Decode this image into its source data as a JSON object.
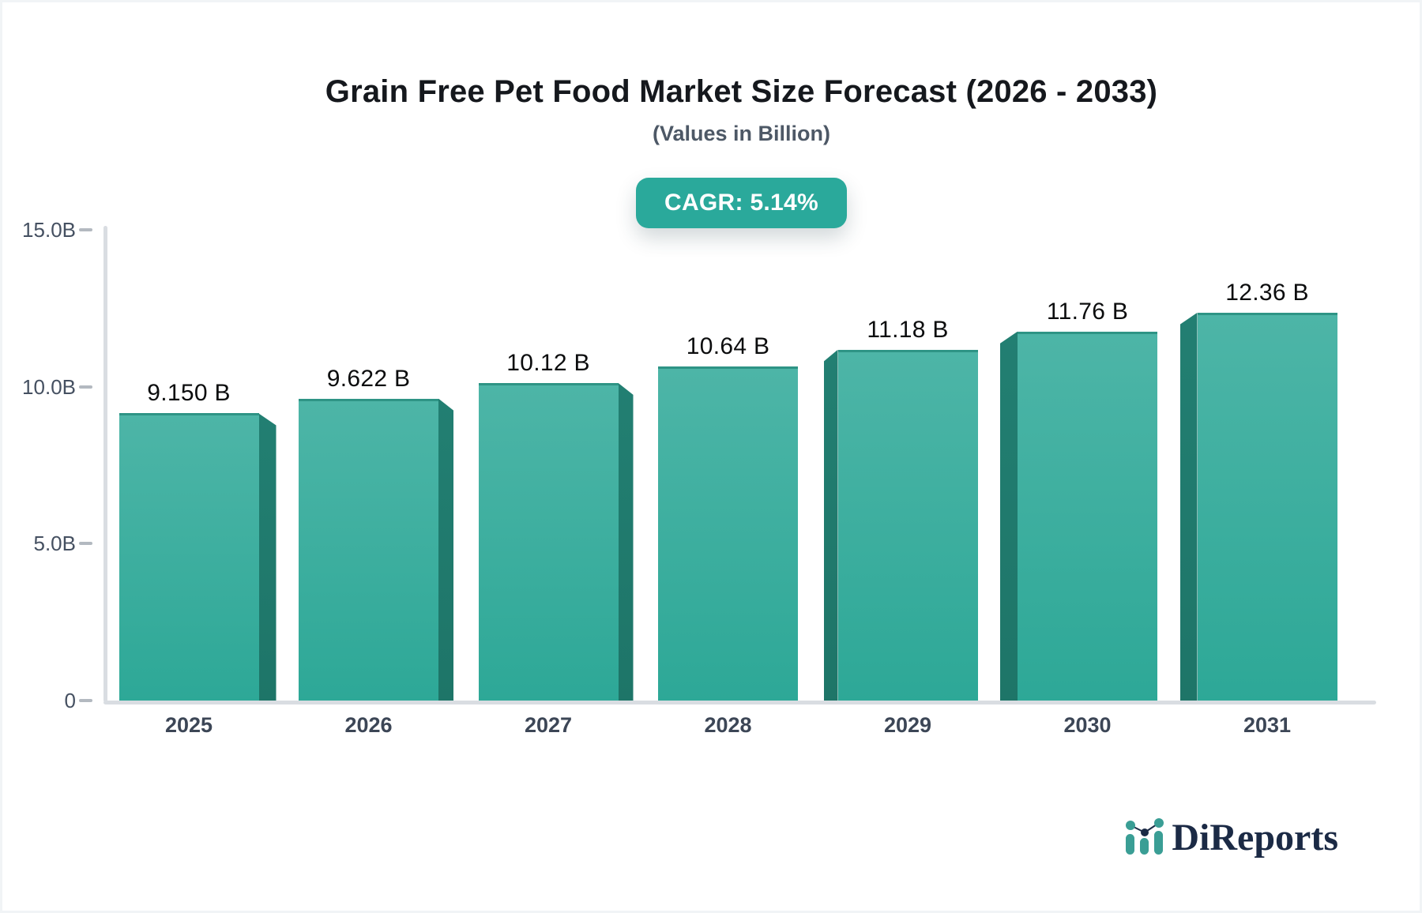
{
  "header": {
    "title": "Grain Free Pet Food Market Size Forecast (2026 - 2033)",
    "subtitle": "(Values in Billion)",
    "cagr_badge": "CAGR: 5.14%"
  },
  "chart_data": {
    "type": "bar",
    "style": "3d-perspective-bars",
    "title": "Grain Free Pet Food Market Size Forecast (2026 - 2033)",
    "subtitle": "(Values in Billion)",
    "cagr_pct": 5.14,
    "categories": [
      "2025",
      "2026",
      "2027",
      "2028",
      "2029",
      "2030",
      "2031"
    ],
    "values": [
      9.15,
      9.622,
      10.12,
      10.64,
      11.18,
      11.76,
      12.36
    ],
    "value_labels": [
      "9.150 B",
      "9.622 B",
      "10.12 B",
      "10.64 B",
      "11.18 B",
      "11.76 B",
      "12.36 B"
    ],
    "xlabel": "",
    "ylabel": "",
    "ylim": [
      0,
      15
    ],
    "yticks": [
      0,
      5,
      10,
      15
    ],
    "ytick_labels": [
      "0",
      "5.0B",
      "10.0B",
      "15.0B"
    ],
    "grid": false,
    "legend": "none",
    "bar_face_color": "#35a99b",
    "bar_side_color": "#217d70",
    "axis_color": "#d9dde2"
  },
  "colors": {
    "accent_teal": "#2aa99b",
    "bar_gradient_top": "#4db5a7",
    "bar_gradient_bottom": "#2da897",
    "bar_side": "#217d70",
    "axis_gray": "#d9dde2",
    "logo_navy": "#1b2a45",
    "logo_teal": "#3a9e95"
  },
  "logo": {
    "text": "DiReports",
    "icon": "bar-line-chart-icon"
  }
}
